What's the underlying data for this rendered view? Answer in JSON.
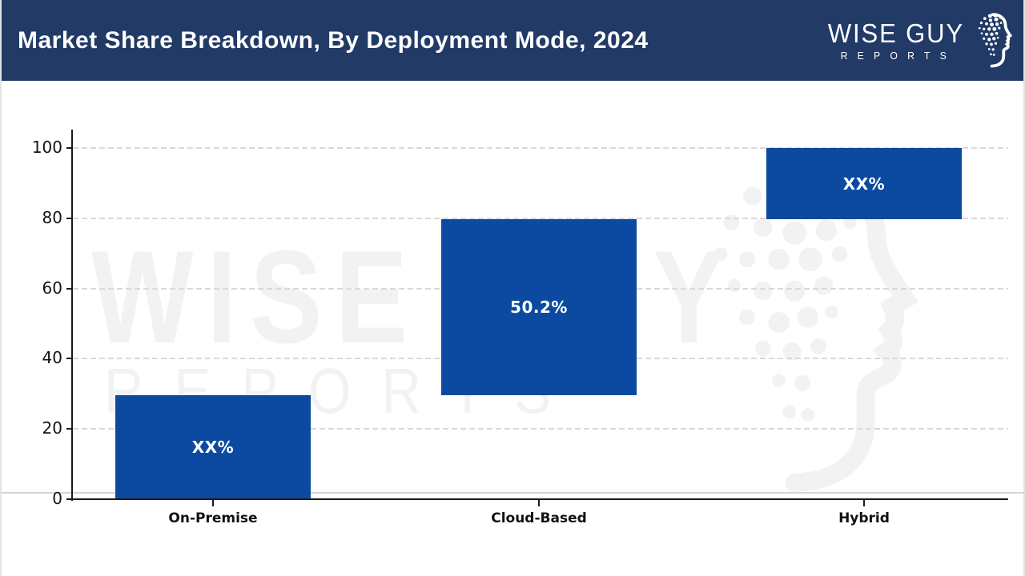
{
  "header": {
    "title": "Market Share Breakdown, By Deployment Mode, 2024",
    "logo": {
      "name": "WISE GUY",
      "tagline": "REPORTS"
    }
  },
  "watermark": {
    "line1": "WISE GUY",
    "line2": "REPORTS"
  },
  "colors": {
    "header_bg": "#213a66",
    "bar": "#0b4aa0",
    "gridline": "#d9d9d9",
    "axis": "#1a1a1a",
    "bar_label": "#ffffff",
    "watermark": "#f2f2f4"
  },
  "chart_data": {
    "type": "bar",
    "variant": "floating-waterfall",
    "title": "Market Share Breakdown, By Deployment Mode, 2024",
    "categories": [
      "On-Premise",
      "Cloud-Based",
      "Hybrid"
    ],
    "bars": [
      {
        "category": "On-Premise",
        "start": 0,
        "end": 29.6,
        "label": "XX%"
      },
      {
        "category": "Cloud-Based",
        "start": 29.6,
        "end": 79.8,
        "label": "50.2%"
      },
      {
        "category": "Hybrid",
        "start": 79.8,
        "end": 100,
        "label": "XX%"
      }
    ],
    "xlabel": "",
    "ylabel": "",
    "ylim": [
      0,
      100
    ],
    "yticks": [
      0,
      20,
      40,
      60,
      80,
      100
    ],
    "grid": "horizontal-dashed",
    "legend": "none"
  }
}
